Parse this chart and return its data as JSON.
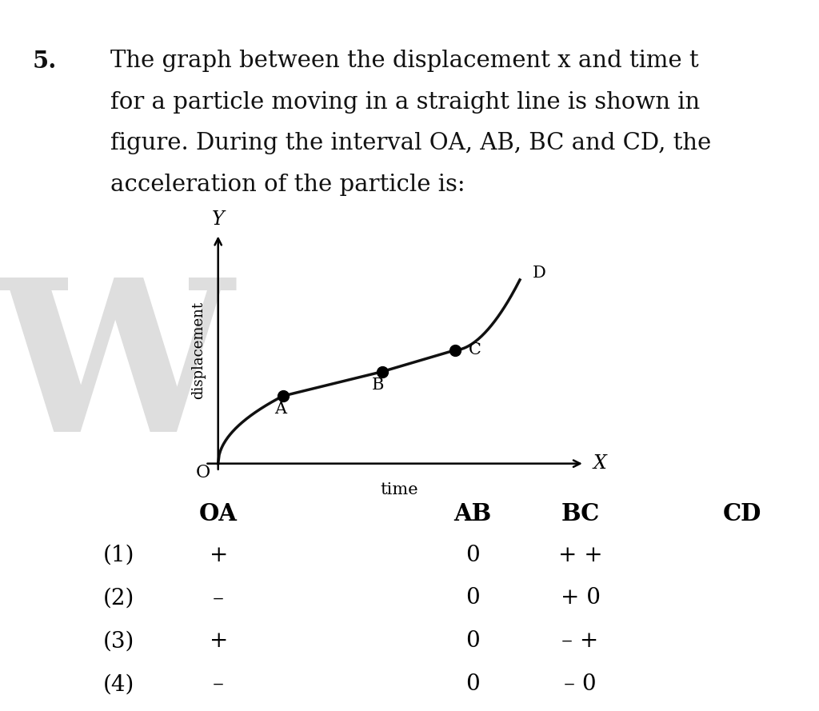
{
  "title_number": "5.",
  "title_text": "The graph between the displacement x and time t\nfor a particle moving in a straight line is shown in\nfigure. During the interval OA, AB, BC and CD, the\nacceleration of the particle is:",
  "graph": {
    "x_axis_label": "X",
    "y_axis_label": "Y",
    "x_label": "time",
    "y_label": "displacement",
    "origin_label": "O",
    "points": {
      "A": [
        1.5,
        2.5
      ],
      "B": [
        3.8,
        3.4
      ],
      "C": [
        5.5,
        4.2
      ],
      "D": [
        7.0,
        6.8
      ]
    }
  },
  "table": {
    "col_OA": "OA",
    "col_AB": "AB",
    "col_BC": "BC",
    "col_CD": "CD",
    "rows": [
      {
        "num": "(1)",
        "OA": "+",
        "AB": "0",
        "BC": "++",
        "CD": ""
      },
      {
        "num": "(2)",
        "OA": "–",
        "AB": "0",
        "BC": "+ 0",
        "CD": ""
      },
      {
        "num": "(3)",
        "OA": "+",
        "AB": "0",
        "BC": "– +",
        "CD": ""
      },
      {
        "num": "(4)",
        "OA": "–",
        "AB": "0",
        "BC": "– 0",
        "CD": ""
      }
    ]
  },
  "background_color": "#ffffff",
  "text_color": "#111111",
  "curve_color": "#111111"
}
